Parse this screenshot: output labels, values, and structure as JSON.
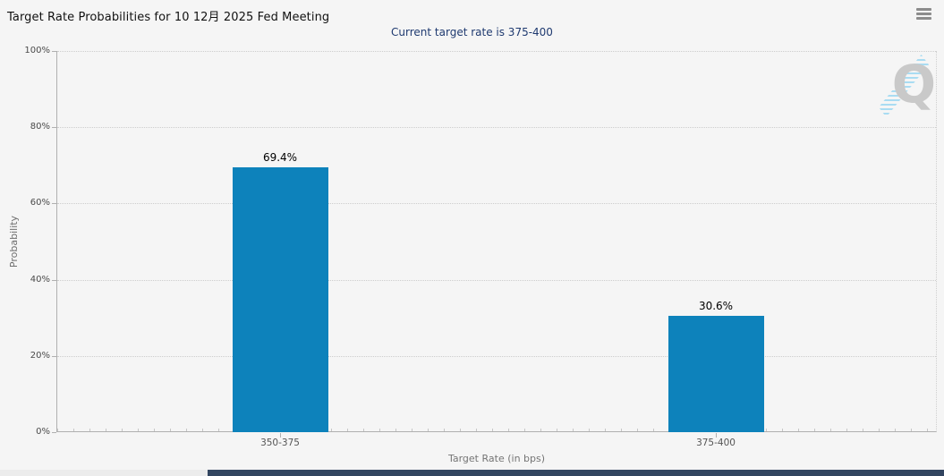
{
  "header": {
    "title": "Target Rate Probabilities for 10 12月 2025 Fed Meeting"
  },
  "subtitle": "Current target rate is 375-400",
  "watermark": {
    "letter": "Q"
  },
  "chart_data": {
    "type": "bar",
    "title": "Target Rate Probabilities for 10 12月 2025 Fed Meeting",
    "subtitle": "Current target rate is 375-400",
    "categories": [
      "350-375",
      "375-400"
    ],
    "values": [
      69.4,
      30.6
    ],
    "value_labels": [
      "69.4%",
      "30.6%"
    ],
    "xlabel": "Target Rate (in bps)",
    "ylabel": "Probability",
    "ylim": [
      0,
      100
    ],
    "ytick_values": [
      0,
      20,
      40,
      60,
      80,
      100
    ],
    "ytick_labels": [
      "0%",
      "20%",
      "40%",
      "60%",
      "80%",
      "100%"
    ],
    "grid": "horizontal-dotted",
    "legend": "none"
  },
  "colors": {
    "background": "#f5f5f5",
    "bar": "#0d82bb",
    "subtitle_text": "#1f3a70",
    "axis_line": "#b0b0b0",
    "gridline": "#cdcdcd",
    "scrollbar_thumb": "#324560",
    "watermark_gray": "#c9c9c9",
    "watermark_blue": "#a9dcf2"
  }
}
